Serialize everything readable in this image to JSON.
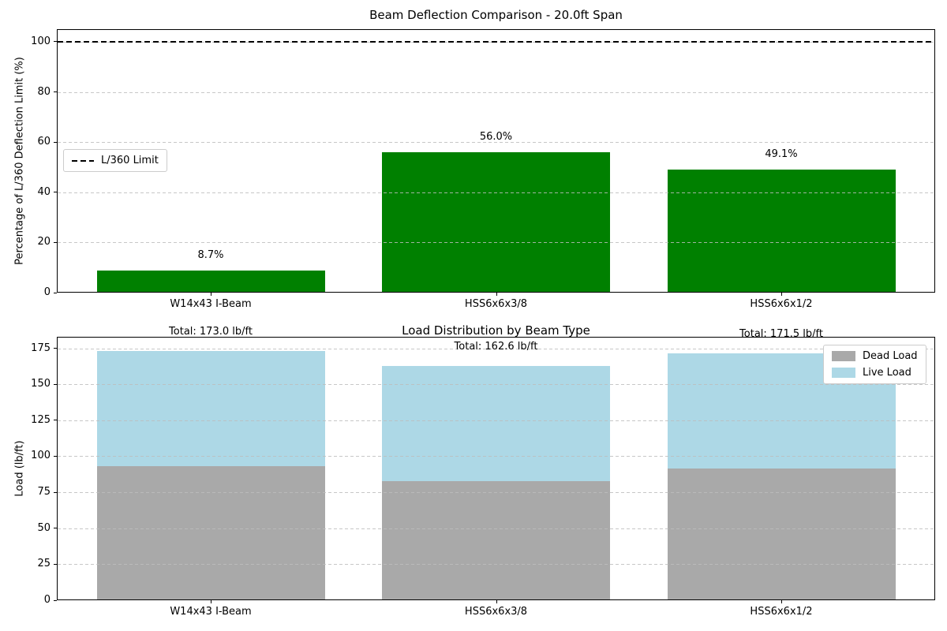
{
  "figure": {
    "background": "#ffffff"
  },
  "chart_data": [
    {
      "type": "bar",
      "title": "Beam Deflection Comparison - 20.0ft Span",
      "xlabel": "",
      "ylabel": "Percentage of L/360 Deflection Limit (%)",
      "categories": [
        "W14x43 I-Beam",
        "HSS6x6x3/8",
        "HSS6x6x1/2"
      ],
      "values": [
        8.7,
        56.0,
        49.1
      ],
      "bar_labels": [
        "8.7%",
        "56.0%",
        "49.1%"
      ],
      "bar_color": "#008000",
      "yticks": [
        0,
        20,
        40,
        60,
        80,
        100
      ],
      "ylim": [
        0,
        105
      ],
      "grid": "y-dashed",
      "reference_line": {
        "value": 100,
        "label": "L/360 Limit",
        "color": "#000000",
        "style": "dashed"
      },
      "legend": {
        "position": "center-left",
        "items": [
          {
            "label": "L/360 Limit",
            "swatch": "dashed-line",
            "color": "#000000"
          }
        ]
      }
    },
    {
      "type": "stacked-bar",
      "title": "Load Distribution by Beam Type",
      "xlabel": "",
      "ylabel": "Load (lb/ft)",
      "categories": [
        "W14x43 I-Beam",
        "HSS6x6x3/8",
        "HSS6x6x1/2"
      ],
      "series": [
        {
          "name": "Dead Load",
          "color": "#a9a9a9",
          "values": [
            93.0,
            82.6,
            91.5
          ]
        },
        {
          "name": "Live Load",
          "color": "#add8e6",
          "values": [
            80.0,
            80.0,
            80.0
          ]
        }
      ],
      "totals": [
        173.0,
        162.6,
        171.5
      ],
      "total_labels": [
        "Total: 173.0 lb/ft",
        "Total: 162.6 lb/ft",
        "Total: 171.5 lb/ft"
      ],
      "yticks": [
        0,
        25,
        50,
        75,
        100,
        125,
        150,
        175
      ],
      "ylim": [
        0,
        183
      ],
      "grid": "y-dashed",
      "legend": {
        "position": "top-right",
        "items": [
          {
            "label": "Dead Load",
            "swatch": "rect",
            "color": "#a9a9a9"
          },
          {
            "label": "Live Load",
            "swatch": "rect",
            "color": "#add8e6"
          }
        ]
      }
    }
  ]
}
